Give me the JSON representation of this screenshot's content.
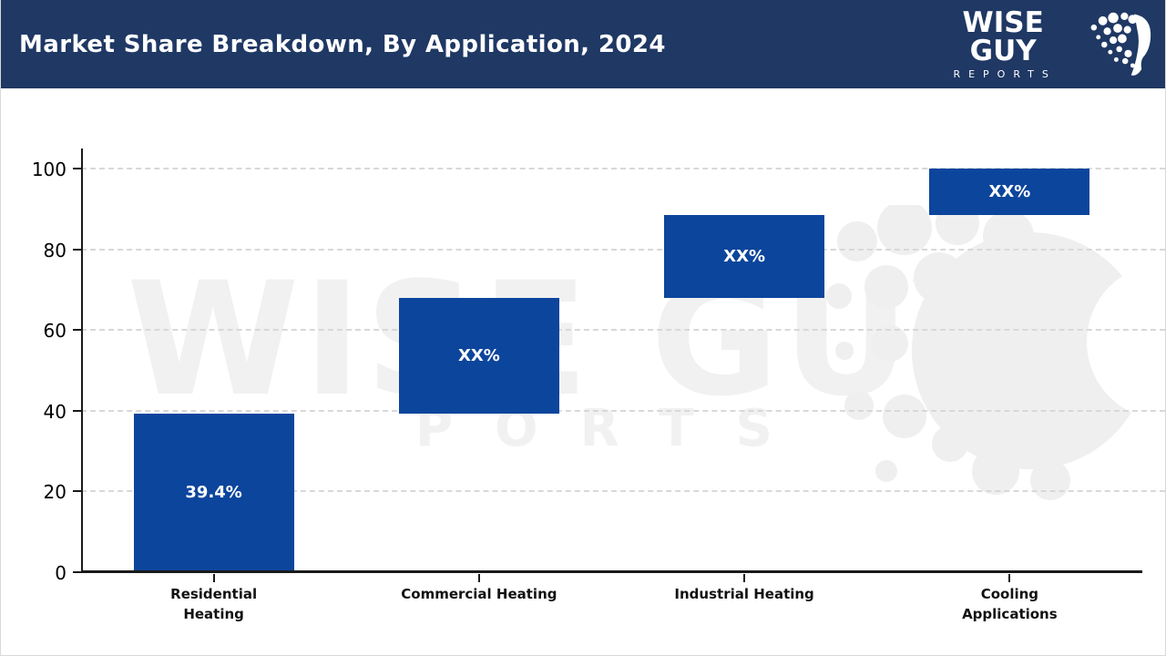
{
  "header": {
    "title": "Market Share Breakdown, By Application, 2024",
    "logo": {
      "name": "WISE GUY",
      "tagline": "REPORTS"
    }
  },
  "watermark": {
    "line1": "WISE GUY",
    "line2": "PORTS"
  },
  "chart_data": {
    "type": "bar",
    "subtype": "waterfall",
    "title": "Market Share Breakdown, By Application, 2024",
    "categories": [
      "Residential Heating",
      "Commercial Heating",
      "Industrial Heating",
      "Cooling Applications"
    ],
    "category_display": [
      "Residential\nHeating",
      "Commercial Heating",
      "Industrial Heating",
      "Cooling\nApplications"
    ],
    "segments": [
      {
        "category": "Residential Heating",
        "start": 0,
        "end": 39.4,
        "label": "39.4%"
      },
      {
        "category": "Commercial Heating",
        "start": 39.4,
        "end": 68,
        "label": "XX%"
      },
      {
        "category": "Industrial Heating",
        "start": 68,
        "end": 88.5,
        "label": "XX%"
      },
      {
        "category": "Cooling Applications",
        "start": 88.5,
        "end": 100,
        "label": "XX%"
      }
    ],
    "yticks": [
      0,
      20,
      40,
      60,
      80,
      100
    ],
    "ylim": [
      0,
      105
    ],
    "grid": "horizontal-dashed",
    "legend": null,
    "bar_color": "#0c459c"
  },
  "colors": {
    "header_bg": "#1f3864",
    "bar": "#0c459c",
    "axis": "#1a1a1a",
    "gridline": "#d8d8d8",
    "watermark": "#f1f1f1",
    "watermark_face": "#efefef"
  }
}
